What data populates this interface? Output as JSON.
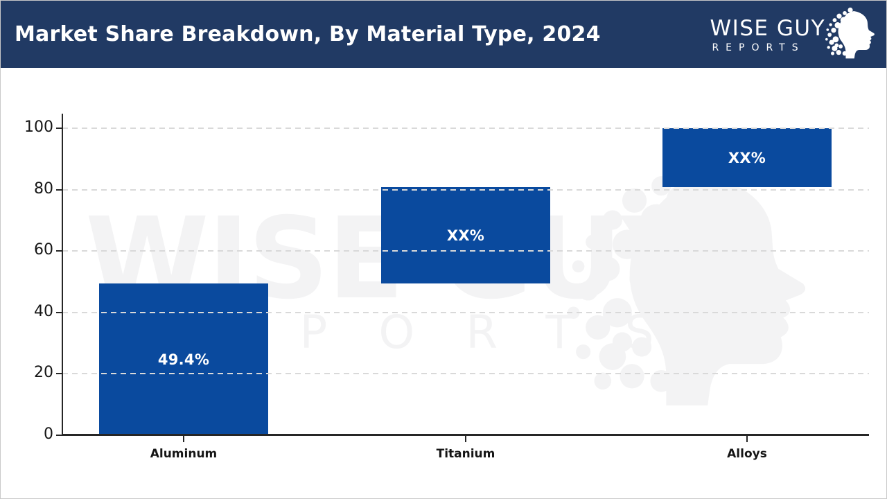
{
  "header": {
    "title": "Market Share Breakdown, By Material Type, 2024",
    "logo": {
      "line1": "WISE GUY",
      "line2": "REPORTS"
    }
  },
  "watermark": {
    "line1": "WISE GUY",
    "line2": "REPORTS"
  },
  "colors": {
    "header_bg": "#213A64",
    "bar_blue": "#0A4A9E",
    "bar_label": "#FFFFFF",
    "grid": "#D9D9D9",
    "axis": "#262626",
    "watermark": "#F3F3F4",
    "title_text": "#FFFFFF"
  },
  "chart_data": {
    "type": "bar",
    "subtype": "waterfall-floating-bars",
    "title": "Market Share Breakdown, By Material Type, 2024",
    "categories": [
      "Aluminum",
      "Titanium",
      "Alloys"
    ],
    "segments": [
      {
        "category": "Aluminum",
        "start": 0,
        "end": 49.4,
        "label": "49.4%"
      },
      {
        "category": "Titanium",
        "start": 49.4,
        "end": 80.8,
        "label": "XX%"
      },
      {
        "category": "Alloys",
        "start": 80.8,
        "end": 100,
        "label": "XX%"
      }
    ],
    "xlabel": "",
    "ylabel": "",
    "yticks": [
      0,
      20,
      40,
      60,
      80,
      100
    ],
    "ylim": [
      0,
      105
    ],
    "grid": "horizontal-dashed",
    "grid_above_bars": true,
    "legend": "none",
    "bar_color": "#0A4A9E",
    "bar_label_color": "#FFFFFF"
  }
}
